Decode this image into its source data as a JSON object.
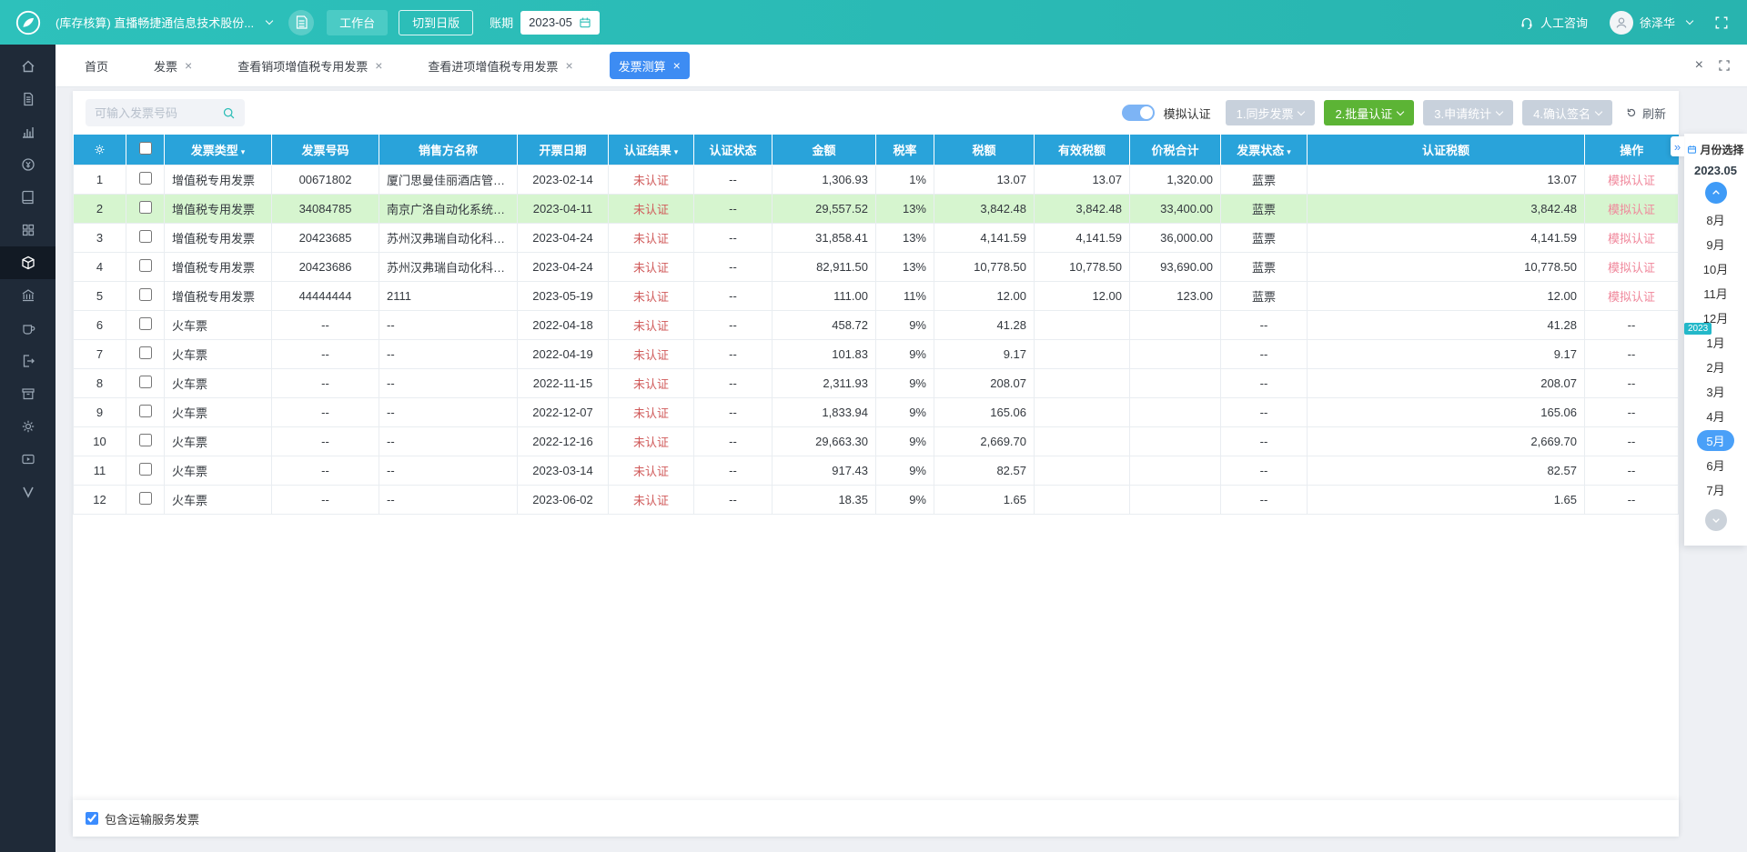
{
  "topbar": {
    "company": "(库存核算) 直播畅捷通信息技术股份...",
    "workbench_label": "工作台",
    "switch_label": "切到日版",
    "period_label": "账期",
    "period_value": "2023-05",
    "support_label": "人工咨询",
    "username": "徐泽华"
  },
  "sidebar": {
    "items": [
      "home",
      "invoice",
      "report",
      "funds",
      "ledger",
      "apps",
      "assets-cube",
      "bank",
      "tea-cup",
      "exit",
      "archive",
      "settings",
      "video",
      "v-logo"
    ],
    "active_index": 6
  },
  "tabs": [
    {
      "label": "首页",
      "closable": false,
      "active": false
    },
    {
      "label": "发票",
      "closable": true,
      "active": false
    },
    {
      "label": "查看销项增值税专用发票",
      "closable": true,
      "active": false
    },
    {
      "label": "查看进项增值税专用发票",
      "closable": true,
      "active": false
    },
    {
      "label": "发票测算",
      "closable": true,
      "active": true
    }
  ],
  "toolbar": {
    "search_placeholder": "可输入发票号码",
    "simulate_label": "模拟认证",
    "buttons": [
      {
        "label": "1.同步发票",
        "style": "gray"
      },
      {
        "label": "2.批量认证",
        "style": "green"
      },
      {
        "label": "3.申请统计",
        "style": "gray"
      },
      {
        "label": "4.确认签名",
        "style": "gray"
      }
    ],
    "refresh_label": "刷新"
  },
  "table": {
    "columns": [
      "发票类型",
      "发票号码",
      "销售方名称",
      "开票日期",
      "认证结果",
      "认证状态",
      "金额",
      "税率",
      "税额",
      "有效税额",
      "价税合计",
      "发票状态",
      "认证税额",
      "操作"
    ],
    "sortable_columns": [
      0,
      4,
      11
    ],
    "rows": [
      {
        "type": "增值税专用发票",
        "number": "00671802",
        "seller": "厦门思曼佳丽酒店管理有限...",
        "date": "2023-02-14",
        "result": "未认证",
        "status": "--",
        "amount": "1,306.93",
        "rate": "1%",
        "tax": "13.07",
        "valid_tax": "13.07",
        "total": "1,320.00",
        "invoice_status": "蓝票",
        "certified_tax": "13.07",
        "action": "模拟认证",
        "selected": false
      },
      {
        "type": "增值税专用发票",
        "number": "34084785",
        "seller": "南京广洛自动化系统有限责...",
        "date": "2023-04-11",
        "result": "未认证",
        "status": "--",
        "amount": "29,557.52",
        "rate": "13%",
        "tax": "3,842.48",
        "valid_tax": "3,842.48",
        "total": "33,400.00",
        "invoice_status": "蓝票",
        "certified_tax": "3,842.48",
        "action": "模拟认证",
        "selected": true
      },
      {
        "type": "增值税专用发票",
        "number": "20423685",
        "seller": "苏州汉弗瑞自动化科技有限...",
        "date": "2023-04-24",
        "result": "未认证",
        "status": "--",
        "amount": "31,858.41",
        "rate": "13%",
        "tax": "4,141.59",
        "valid_tax": "4,141.59",
        "total": "36,000.00",
        "invoice_status": "蓝票",
        "certified_tax": "4,141.59",
        "action": "模拟认证",
        "selected": false
      },
      {
        "type": "增值税专用发票",
        "number": "20423686",
        "seller": "苏州汉弗瑞自动化科技有限...",
        "date": "2023-04-24",
        "result": "未认证",
        "status": "--",
        "amount": "82,911.50",
        "rate": "13%",
        "tax": "10,778.50",
        "valid_tax": "10,778.50",
        "total": "93,690.00",
        "invoice_status": "蓝票",
        "certified_tax": "10,778.50",
        "action": "模拟认证",
        "selected": false
      },
      {
        "type": "增值税专用发票",
        "number": "44444444",
        "seller": "2111",
        "date": "2023-05-19",
        "result": "未认证",
        "status": "--",
        "amount": "111.00",
        "rate": "11%",
        "tax": "12.00",
        "valid_tax": "12.00",
        "total": "123.00",
        "invoice_status": "蓝票",
        "certified_tax": "12.00",
        "action": "模拟认证",
        "selected": false
      },
      {
        "type": "火车票",
        "number": "--",
        "seller": "--",
        "date": "2022-04-18",
        "result": "未认证",
        "status": "--",
        "amount": "458.72",
        "rate": "9%",
        "tax": "41.28",
        "valid_tax": "",
        "total": "",
        "invoice_status": "--",
        "certified_tax": "41.28",
        "action": "--",
        "selected": false
      },
      {
        "type": "火车票",
        "number": "--",
        "seller": "--",
        "date": "2022-04-19",
        "result": "未认证",
        "status": "--",
        "amount": "101.83",
        "rate": "9%",
        "tax": "9.17",
        "valid_tax": "",
        "total": "",
        "invoice_status": "--",
        "certified_tax": "9.17",
        "action": "--",
        "selected": false
      },
      {
        "type": "火车票",
        "number": "--",
        "seller": "--",
        "date": "2022-11-15",
        "result": "未认证",
        "status": "--",
        "amount": "2,311.93",
        "rate": "9%",
        "tax": "208.07",
        "valid_tax": "",
        "total": "",
        "invoice_status": "--",
        "certified_tax": "208.07",
        "action": "--",
        "selected": false
      },
      {
        "type": "火车票",
        "number": "--",
        "seller": "--",
        "date": "2022-12-07",
        "result": "未认证",
        "status": "--",
        "amount": "1,833.94",
        "rate": "9%",
        "tax": "165.06",
        "valid_tax": "",
        "total": "",
        "invoice_status": "--",
        "certified_tax": "165.06",
        "action": "--",
        "selected": false
      },
      {
        "type": "火车票",
        "number": "--",
        "seller": "--",
        "date": "2022-12-16",
        "result": "未认证",
        "status": "--",
        "amount": "29,663.30",
        "rate": "9%",
        "tax": "2,669.70",
        "valid_tax": "",
        "total": "",
        "invoice_status": "--",
        "certified_tax": "2,669.70",
        "action": "--",
        "selected": false
      },
      {
        "type": "火车票",
        "number": "--",
        "seller": "--",
        "date": "2023-03-14",
        "result": "未认证",
        "status": "--",
        "amount": "917.43",
        "rate": "9%",
        "tax": "82.57",
        "valid_tax": "",
        "total": "",
        "invoice_status": "--",
        "certified_tax": "82.57",
        "action": "--",
        "selected": false
      },
      {
        "type": "火车票",
        "number": "--",
        "seller": "--",
        "date": "2023-06-02",
        "result": "未认证",
        "status": "--",
        "amount": "18.35",
        "rate": "9%",
        "tax": "1.65",
        "valid_tax": "",
        "total": "",
        "invoice_status": "--",
        "certified_tax": "1.65",
        "action": "--",
        "selected": false
      }
    ]
  },
  "month_panel": {
    "title": "月份选择",
    "current": "2023.05",
    "year_badge": "2023",
    "months": [
      "8月",
      "9月",
      "10月",
      "11月",
      "12月",
      "1月",
      "2月",
      "3月",
      "4月",
      "5月",
      "6月",
      "7月"
    ],
    "active_index": 9,
    "badge_before_index": 5
  },
  "footer": {
    "transport_label": "包含运输服务发票"
  },
  "colors": {
    "topbar_teal": "#2ABDB6",
    "table_header_blue": "#29A3DA",
    "accent_blue": "#3D8CF3",
    "button_green": "#5CB435",
    "selected_row_green": "#D6F5CF",
    "action_pink": "#F0879B",
    "result_red": "#D05A5A",
    "year_badge_teal": "#23B8C9"
  }
}
